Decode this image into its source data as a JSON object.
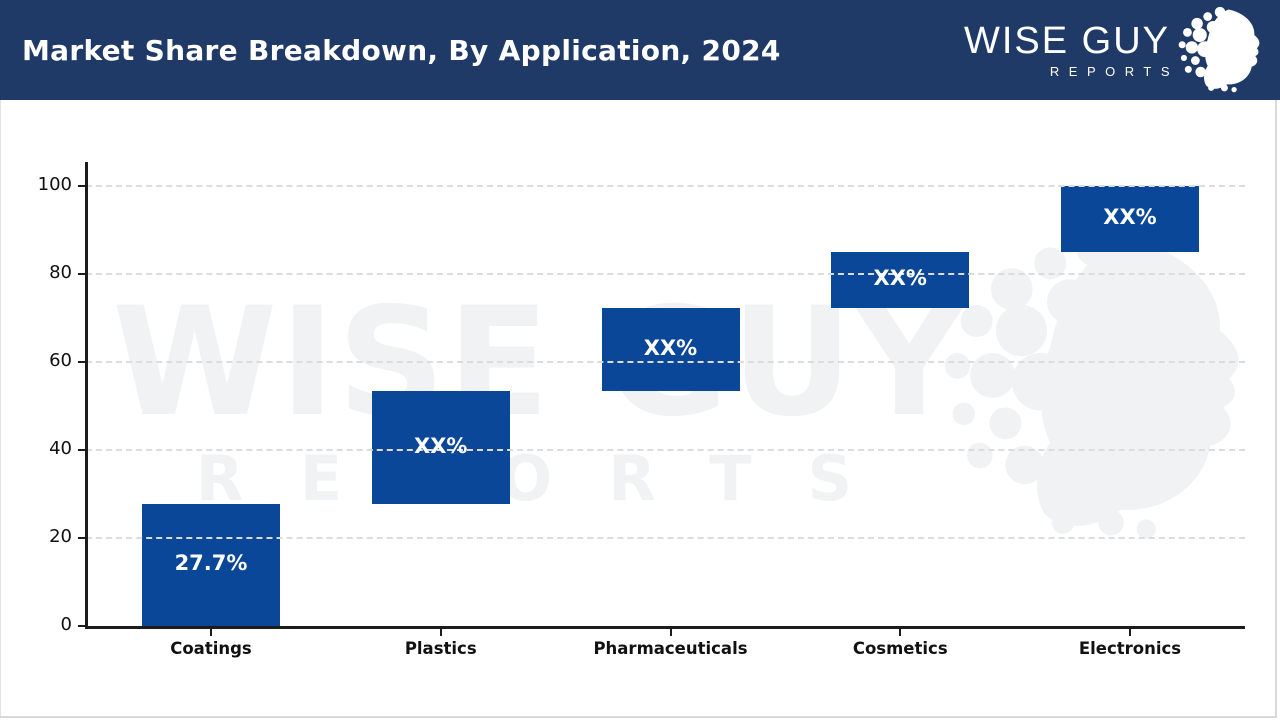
{
  "header": {
    "title": "Market Share Breakdown, By Application, 2024",
    "bg_color": "#203a68",
    "logo": {
      "line1": "WISE GUY",
      "line2": "REPORTS"
    }
  },
  "watermark": {
    "line1": "WISE GUY",
    "line2": "REPORTS"
  },
  "chart_data": {
    "type": "bar",
    "subtype": "waterfall",
    "title": "Market Share Breakdown, By Application, 2024",
    "categories": [
      "Coatings",
      "Plastics",
      "Pharmaceuticals",
      "Cosmetics",
      "Electronics"
    ],
    "segments": [
      {
        "category": "Coatings",
        "start": 0,
        "end": 27.7,
        "label": "27.7%"
      },
      {
        "category": "Plastics",
        "start": 27.7,
        "end": 53.3,
        "label": "XX%"
      },
      {
        "category": "Pharmaceuticals",
        "start": 53.3,
        "end": 72.3,
        "label": "XX%"
      },
      {
        "category": "Cosmetics",
        "start": 72.3,
        "end": 85.0,
        "label": "XX%"
      },
      {
        "category": "Electronics",
        "start": 85.0,
        "end": 100.0,
        "label": "XX%"
      }
    ],
    "values": [
      27.7,
      25.6,
      19.0,
      12.7,
      15.0
    ],
    "xlabel": "",
    "ylabel": "",
    "ylim": [
      0,
      100
    ],
    "yticks": [
      0,
      20,
      40,
      60,
      80,
      100
    ],
    "grid": "horizontal-dashed",
    "legend": "none",
    "bar_color": "#0a4798",
    "label_color": "#ffffff"
  }
}
